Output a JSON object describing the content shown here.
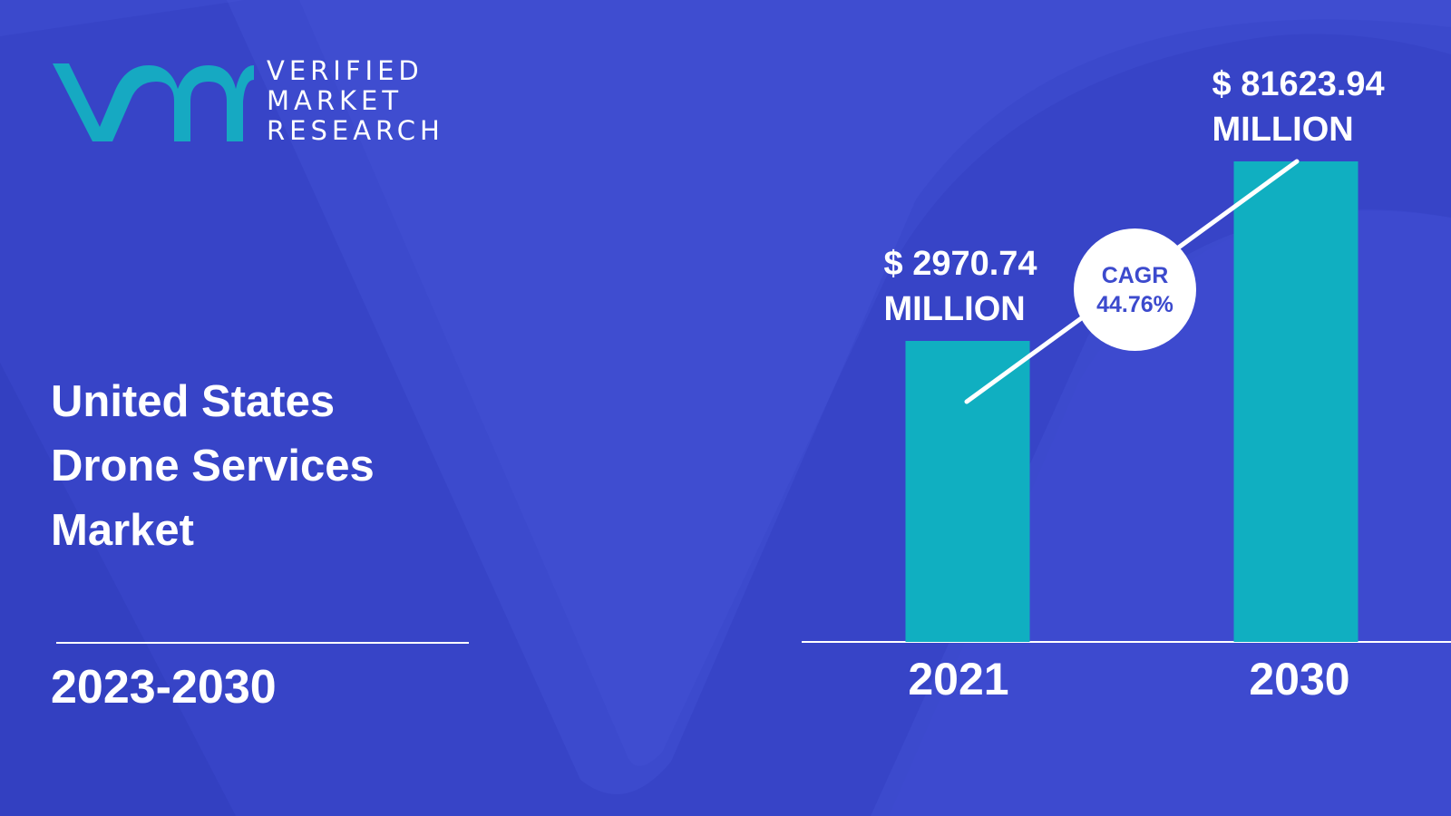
{
  "brand": {
    "line1": "VERIFIED",
    "line2": "MARKET",
    "line3": "RESEARCH",
    "logo_color": "#16a9c2",
    "text_color": "#ffffff"
  },
  "title": {
    "line1": "United States",
    "line2": "Drone Services",
    "line3": "Market"
  },
  "period": "2023-2030",
  "cagr": {
    "label": "CAGR",
    "value": "44.76%"
  },
  "colors": {
    "background": "#3c4acd",
    "shape_dark": "#2d3bb8",
    "bar": "#10afc1",
    "text": "#ffffff"
  },
  "chart_data": {
    "type": "bar",
    "categories": [
      "2021",
      "2030"
    ],
    "values": [
      2970.74,
      81623.94
    ],
    "value_labels": [
      {
        "amount": "$ 2970.74",
        "unit": "MILLION"
      },
      {
        "amount": "$ 81623.94",
        "unit": "MILLION"
      }
    ],
    "title": "",
    "xlabel": "",
    "ylabel": "",
    "grid": false,
    "legend": "none"
  }
}
